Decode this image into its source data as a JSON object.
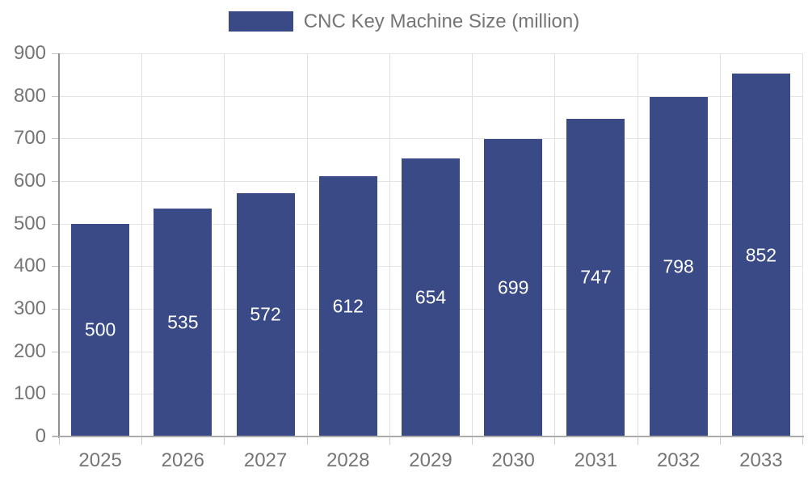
{
  "chart_data": {
    "type": "bar",
    "legend": {
      "label": "CNC Key Machine Size (million)",
      "swatch_color": "#394A87",
      "position": "top-center"
    },
    "categories": [
      "2025",
      "2026",
      "2027",
      "2028",
      "2029",
      "2030",
      "2031",
      "2032",
      "2033"
    ],
    "series": [
      {
        "name": "CNC Key Machine Size (million)",
        "values": [
          500,
          535,
          572,
          612,
          654,
          699,
          747,
          798,
          852
        ]
      }
    ],
    "xlabel": "",
    "ylabel": "",
    "ylim": [
      0,
      900
    ],
    "y_ticks": [
      0,
      100,
      200,
      300,
      400,
      500,
      600,
      700,
      800,
      900
    ],
    "grid": true,
    "value_labels_shown": true,
    "colors": {
      "bar": "#394A87",
      "value_label": "#FFFFFF",
      "axis_text": "#757575",
      "legend_text": "#757575",
      "gridline": "#E4E4E4",
      "axis_line": "#9E9E9E",
      "background": "#FFFFFF"
    }
  }
}
